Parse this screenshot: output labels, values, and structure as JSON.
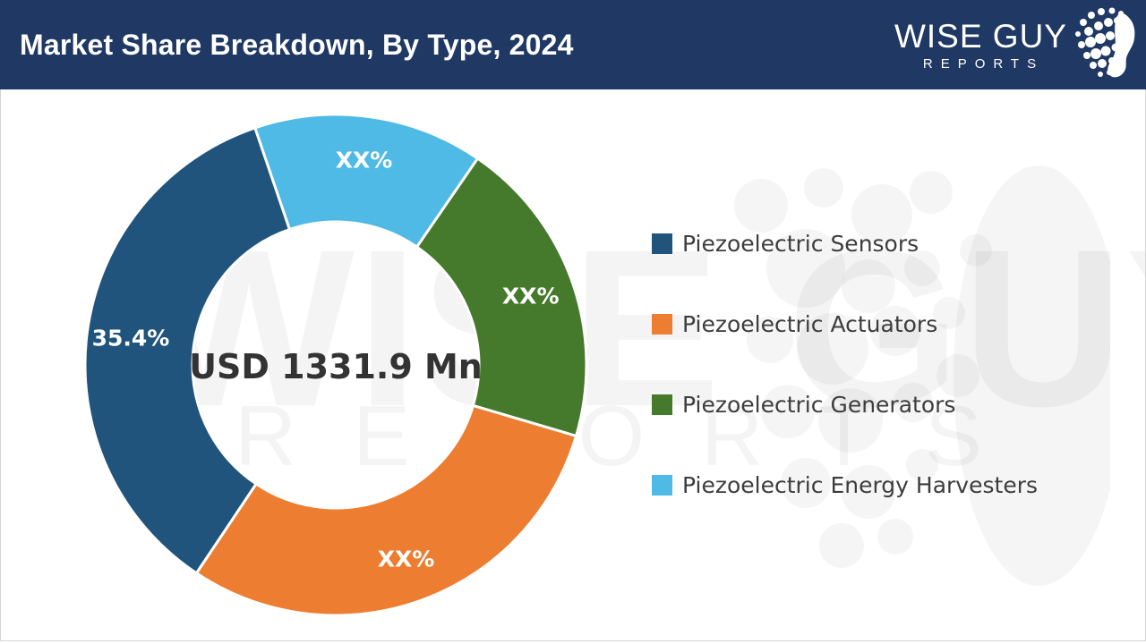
{
  "header": {
    "title": "Market Share Breakdown, By Type, 2024",
    "bg_color": "#1F3864",
    "logo": {
      "line1": "WISE GUY",
      "line2": "REPORTS"
    }
  },
  "watermark": {
    "line1": "WISE GUY",
    "line2": "R E P O R T S"
  },
  "chart_data": {
    "type": "pie",
    "donut": true,
    "title": "Market Share Breakdown, By Type, 2024",
    "center_label": "USD 1331.9 Mn",
    "center_label_color": "#333333",
    "legend_position": "right",
    "start_angle_deg": -18.8,
    "slice_order": [
      3,
      2,
      1,
      0
    ],
    "series": [
      {
        "name": "Piezoelectric Sensors",
        "label": "35.4%",
        "value": 35.4,
        "color": "#20547C"
      },
      {
        "name": "Piezoelectric Actuators",
        "label": "XX%",
        "value": 29.8,
        "color": "#ED7D31"
      },
      {
        "name": "Piezoelectric Generators",
        "label": "XX%",
        "value": 20.0,
        "color": "#45792B"
      },
      {
        "name": "Piezoelectric Energy Harvesters",
        "label": "XX%",
        "value": 14.8,
        "color": "#4FBAE5"
      }
    ]
  }
}
